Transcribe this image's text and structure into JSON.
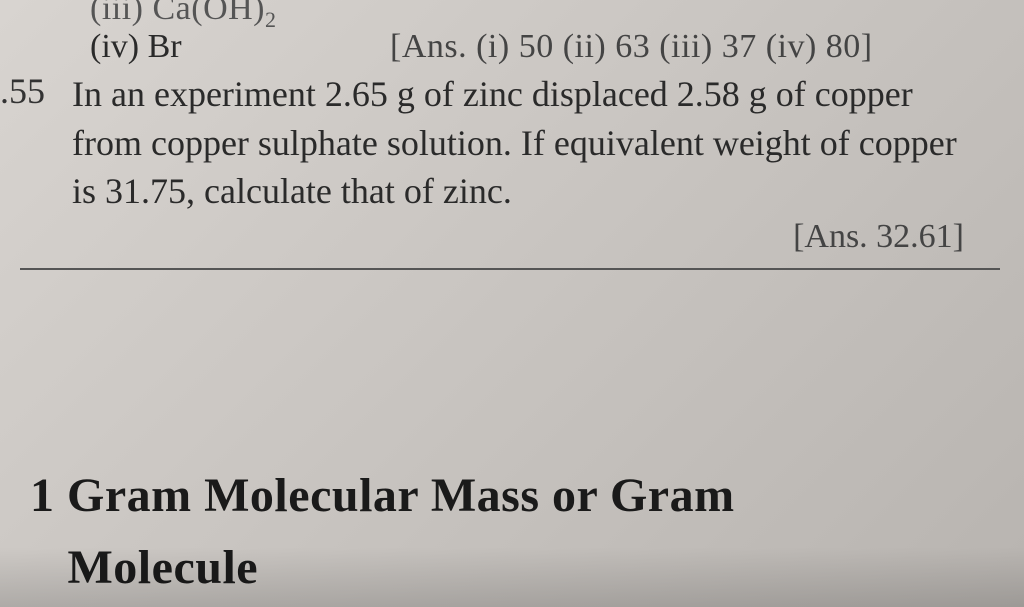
{
  "partial": {
    "roman": "(iii)",
    "compound_pre": "Ca(OH)",
    "compound_sub": "2"
  },
  "lineIv": {
    "roman": "(iv)",
    "label": "Br"
  },
  "ans1": "[Ans. (i) 50 (ii) 63 (iii) 37 (iv) 80]",
  "q55": {
    "num": ".55",
    "body": "In an experiment 2.65 g of zinc displaced 2.58 g of copper from copper sulphate solution. If equivalent weight of copper is 31.75, calculate that of zinc."
  },
  "ans2": "[Ans. 32.61]",
  "heading": {
    "prefix": "1",
    "line1": "Gram Molecular Mass or Gram",
    "line2": "Molecule"
  }
}
